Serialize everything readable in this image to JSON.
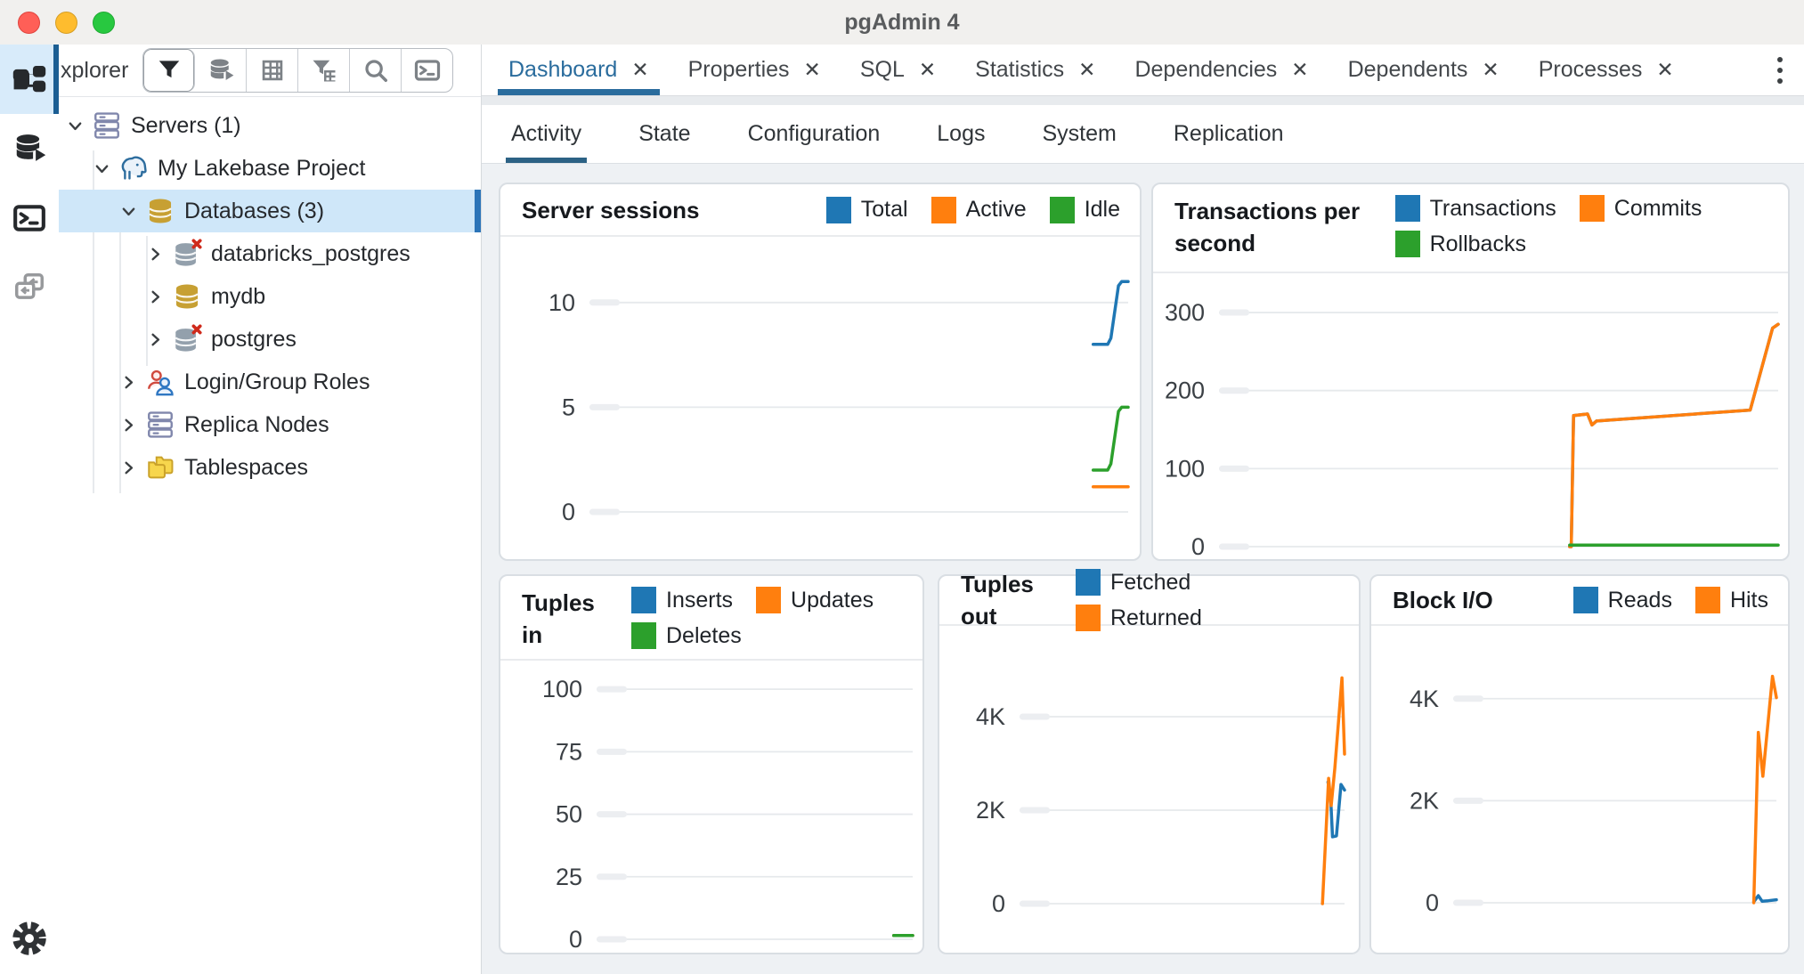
{
  "window": {
    "title": "pgAdmin 4",
    "controls": [
      "close",
      "minimize",
      "zoom"
    ]
  },
  "colors": {
    "blue": "#1f77b4",
    "orange": "#ff7f0e",
    "green": "#2ca02c",
    "accent": "#2a6c9d",
    "subtab_accent": "#2c6285",
    "selection_bg": "#cfe7f9",
    "selection_bar": "#2b74b8"
  },
  "rail": {
    "icons": [
      "object-explorer",
      "query-tool",
      "psql-terminal",
      "schema-diff"
    ],
    "active": "object-explorer",
    "bottom_icon": "settings-gear"
  },
  "explorer": {
    "header_label": "xplorer",
    "toolbar_icons": [
      "filter",
      "query-tool",
      "view-data",
      "filtered-rows",
      "search-objects",
      "psql-tool"
    ],
    "tree": [
      {
        "label": "Servers (1)",
        "icon": "server-stack",
        "level": 1,
        "expanded": true,
        "selected": false
      },
      {
        "label": "My Lakebase Project",
        "icon": "postgres-elephant",
        "level": 2,
        "expanded": true,
        "selected": false
      },
      {
        "label": "Databases (3)",
        "icon": "database-gold",
        "level": 3,
        "expanded": true,
        "selected": true
      },
      {
        "label": "databricks_postgres",
        "icon": "database-disconnected",
        "level": 4,
        "expanded": false,
        "selected": false
      },
      {
        "label": "mydb",
        "icon": "database-gold",
        "level": 4,
        "expanded": false,
        "selected": false
      },
      {
        "label": "postgres",
        "icon": "database-disconnected",
        "level": 4,
        "expanded": false,
        "selected": false
      },
      {
        "label": "Login/Group Roles",
        "icon": "login-group-roles",
        "level": 3,
        "expanded": false,
        "selected": false
      },
      {
        "label": "Replica Nodes",
        "icon": "server-stack",
        "level": 3,
        "expanded": false,
        "selected": false
      },
      {
        "label": "Tablespaces",
        "icon": "tablespaces-folder",
        "level": 3,
        "expanded": false,
        "selected": false
      }
    ]
  },
  "tabs": {
    "items": [
      {
        "label": "Dashboard",
        "active": true
      },
      {
        "label": "Properties",
        "active": false
      },
      {
        "label": "SQL",
        "active": false
      },
      {
        "label": "Statistics",
        "active": false
      },
      {
        "label": "Dependencies",
        "active": false
      },
      {
        "label": "Dependents",
        "active": false
      },
      {
        "label": "Processes",
        "active": false
      }
    ],
    "close_glyph": "✕",
    "overflow_icon": "kebab-vertical"
  },
  "subtabs": {
    "items": [
      "Activity",
      "State",
      "Configuration",
      "Logs",
      "System",
      "Replication"
    ],
    "active": "Activity"
  },
  "chart_data": [
    {
      "key": "server_sessions",
      "type": "line",
      "title": "Server sessions",
      "ylim": [
        0,
        12.5
      ],
      "yticks": [
        {
          "v": 0,
          "label": "0"
        },
        {
          "v": 5,
          "label": "5"
        },
        {
          "v": 10,
          "label": "10"
        }
      ],
      "grid": true,
      "legend_position": "top-right",
      "series": [
        {
          "name": "Total",
          "color": "blue",
          "points": [
            [
              0.935,
              8
            ],
            [
              0.962,
              8
            ],
            [
              0.968,
              8.3
            ],
            [
              0.982,
              10.8
            ],
            [
              0.988,
              11
            ],
            [
              1,
              11
            ]
          ]
        },
        {
          "name": "Active",
          "color": "orange",
          "points": [
            [
              0.935,
              1.2
            ],
            [
              1,
              1.2
            ]
          ]
        },
        {
          "name": "Idle",
          "color": "green",
          "points": [
            [
              0.935,
              2
            ],
            [
              0.962,
              2
            ],
            [
              0.968,
              2.3
            ],
            [
              0.982,
              4.8
            ],
            [
              0.988,
              5
            ],
            [
              1,
              5
            ]
          ]
        }
      ]
    },
    {
      "key": "tps",
      "type": "line",
      "title": "Transactions per second",
      "ylim": [
        0,
        340
      ],
      "yticks": [
        {
          "v": 0,
          "label": "0"
        },
        {
          "v": 100,
          "label": "100"
        },
        {
          "v": 200,
          "label": "200"
        },
        {
          "v": 300,
          "label": "300"
        }
      ],
      "grid": true,
      "legend_position": "top-right",
      "series": [
        {
          "name": "Transactions",
          "color": "blue",
          "points": [
            [
              0.627,
              0
            ],
            [
              0.63,
              0
            ],
            [
              0.634,
              168
            ],
            [
              0.659,
              170
            ],
            [
              0.667,
              156
            ],
            [
              0.675,
              161
            ],
            [
              0.95,
              175
            ],
            [
              0.99,
              280
            ],
            [
              1,
              285
            ]
          ]
        },
        {
          "name": "Commits",
          "color": "orange",
          "points": [
            [
              0.627,
              0
            ],
            [
              0.63,
              0
            ],
            [
              0.634,
              168
            ],
            [
              0.659,
              170
            ],
            [
              0.667,
              156
            ],
            [
              0.675,
              161
            ],
            [
              0.95,
              175
            ],
            [
              0.99,
              280
            ],
            [
              1,
              285
            ]
          ]
        },
        {
          "name": "Rollbacks",
          "color": "green",
          "points": [
            [
              0.627,
              2
            ],
            [
              1,
              2
            ]
          ]
        }
      ]
    },
    {
      "key": "tuples_in",
      "type": "line",
      "title": "Tuples in",
      "ylim": [
        0,
        115
      ],
      "yticks": [
        {
          "v": 0,
          "label": "0"
        },
        {
          "v": 25,
          "label": "25"
        },
        {
          "v": 50,
          "label": "50"
        },
        {
          "v": 75,
          "label": "75"
        },
        {
          "v": 100,
          "label": "100"
        }
      ],
      "grid": true,
      "legend_position": "top-right",
      "series": [
        {
          "name": "Inserts",
          "color": "blue",
          "points": [
            [
              0.94,
              1.5
            ],
            [
              1,
              1.5
            ]
          ]
        },
        {
          "name": "Updates",
          "color": "orange",
          "points": [
            [
              0.94,
              1.5
            ],
            [
              1,
              1.5
            ]
          ]
        },
        {
          "name": "Deletes",
          "color": "green",
          "points": [
            [
              0.94,
              1.5
            ],
            [
              1,
              1.5
            ]
          ]
        }
      ]
    },
    {
      "key": "tuples_out",
      "type": "line",
      "title": "Tuples out",
      "ylim": [
        0,
        5200
      ],
      "yticks": [
        {
          "v": 0,
          "label": "0"
        },
        {
          "v": 2000,
          "label": "2K"
        },
        {
          "v": 4000,
          "label": "4K"
        }
      ],
      "grid": true,
      "legend_position": "top-right",
      "series": [
        {
          "name": "Fetched",
          "color": "blue",
          "points": [
            [
              0.949,
              2600
            ],
            [
              0.957,
              2300
            ],
            [
              0.963,
              1430
            ],
            [
              0.975,
              1450
            ],
            [
              0.989,
              2550
            ],
            [
              1,
              2430
            ]
          ]
        },
        {
          "name": "Returned",
          "color": "orange",
          "points": [
            [
              0.932,
              0
            ],
            [
              0.951,
              2680
            ],
            [
              0.959,
              2100
            ],
            [
              0.97,
              2900
            ],
            [
              0.992,
              4830
            ],
            [
              1,
              3200
            ]
          ]
        }
      ]
    },
    {
      "key": "block_io",
      "type": "line",
      "title": "Block I/O",
      "ylim": [
        0,
        5200
      ],
      "yticks": [
        {
          "v": 0,
          "label": "0"
        },
        {
          "v": 2000,
          "label": "2K"
        },
        {
          "v": 4000,
          "label": "4K"
        }
      ],
      "grid": true,
      "legend_position": "top-right",
      "series": [
        {
          "name": "Reads",
          "color": "blue",
          "points": [
            [
              0.93,
              20
            ],
            [
              0.944,
              140
            ],
            [
              0.956,
              30
            ],
            [
              0.975,
              40
            ],
            [
              1,
              60
            ]
          ]
        },
        {
          "name": "Hits",
          "color": "orange",
          "points": [
            [
              0.93,
              0
            ],
            [
              0.944,
              3340
            ],
            [
              0.958,
              2480
            ],
            [
              0.988,
              4440
            ],
            [
              1,
              4020
            ]
          ]
        }
      ]
    }
  ]
}
